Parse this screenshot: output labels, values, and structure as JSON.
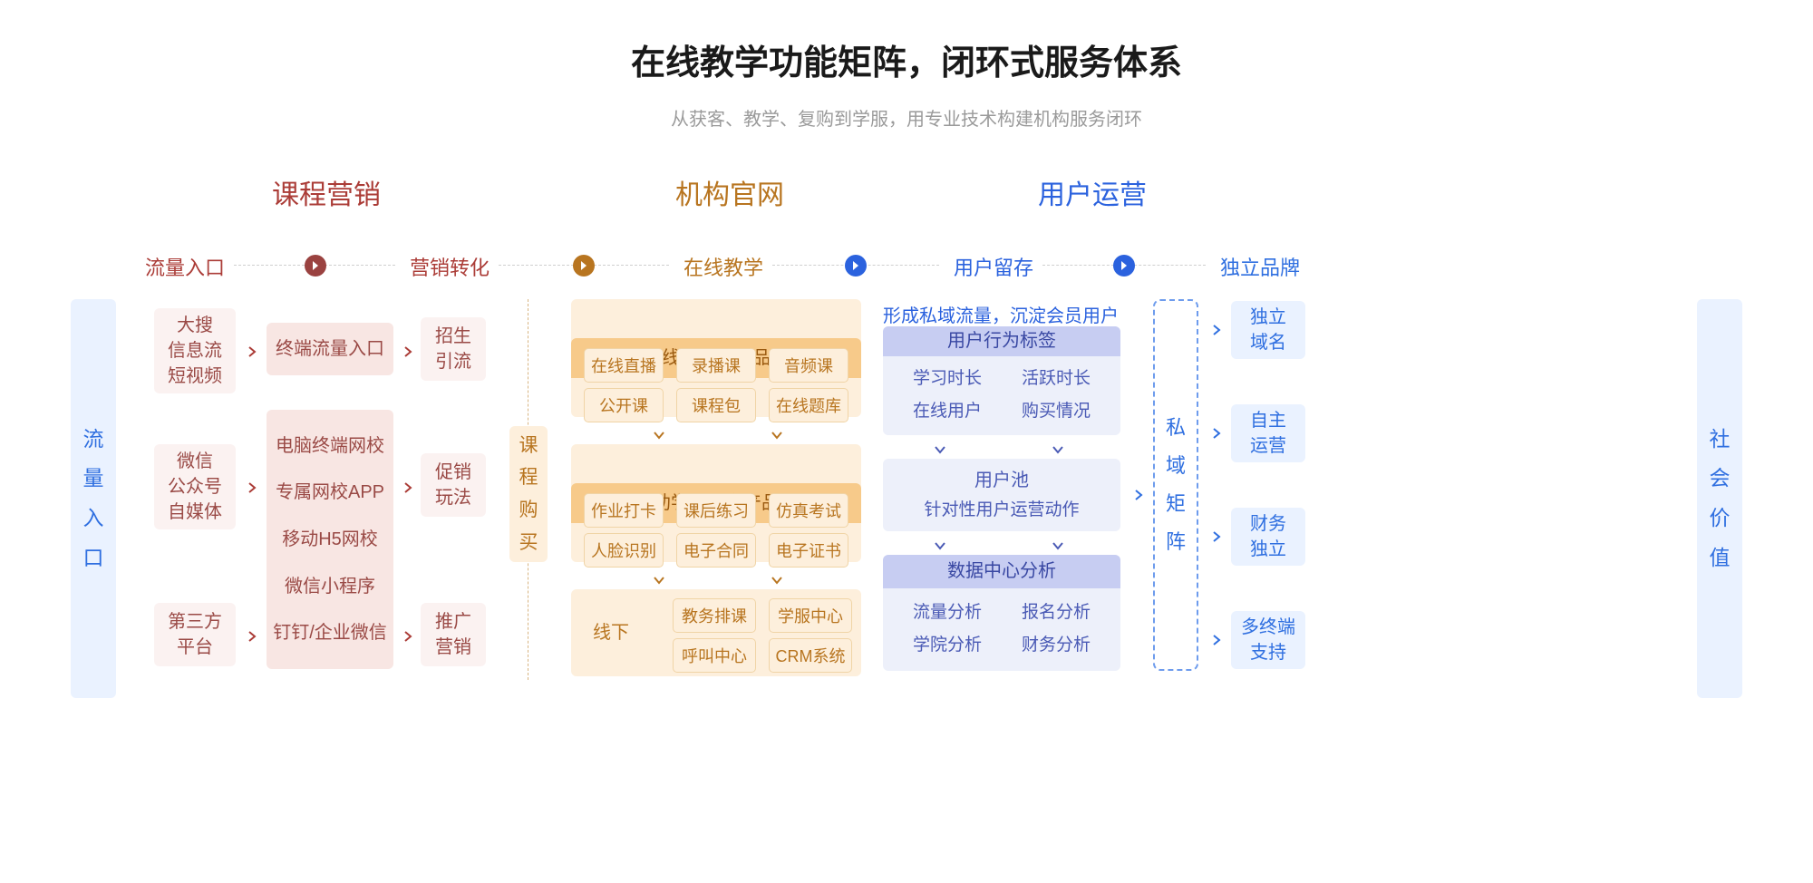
{
  "title": "在线教学功能矩阵，闭环式服务体系",
  "subtitle": "从获客、教学、复购到学服，用专业技术构建机构服务闭环",
  "sections": {
    "marketing": {
      "label": "课程营销",
      "color": "#ab3c37"
    },
    "website": {
      "label": "机构官网",
      "color": "#b87520"
    },
    "userops": {
      "label": "用户运营",
      "color": "#2b62de"
    }
  },
  "stages": {
    "s1": {
      "label": "流量入口",
      "color": "#ab3c37"
    },
    "s2": {
      "label": "营销转化",
      "color": "#ab3c37"
    },
    "s3": {
      "label": "在线教学",
      "color": "#b87520"
    },
    "s4": {
      "label": "用户留存",
      "color": "#2b62de"
    },
    "s5": {
      "label": "独立品牌",
      "color": "#2f6fe0"
    }
  },
  "pillars": {
    "left": {
      "label": "流量入口",
      "bg": "#eaf2ff",
      "color": "#2f6fe0"
    },
    "mid": {
      "label": "课程购买",
      "bg": "#fdefdc",
      "color": "#b87520"
    },
    "right": {
      "label": "社会价值",
      "bg": "#eaf2ff",
      "color": "#2f6fe0"
    }
  },
  "marketing": {
    "sources": {
      "a": "大搜\n信息流\n短视频",
      "b": "微信\n公众号\n自媒体",
      "c": "第三方\n平台"
    },
    "mids": {
      "a": "终端流量入口",
      "list": [
        "电脑终端网校",
        "专属网校APP",
        "移动H5网校",
        "微信小程序",
        "钉钉/企业微信"
      ]
    },
    "converts": {
      "a": "招生\n引流",
      "b": "促销\n玩法",
      "c": "推广\n营销"
    }
  },
  "teaching": {
    "online_hdr": "线上教育产品",
    "online": [
      "在线直播",
      "录播课",
      "音频课",
      "公开课",
      "课程包",
      "在线题库"
    ],
    "assist_hdr": "助学、督学产品",
    "assist": [
      "作业打卡",
      "课后练习",
      "仿真考试",
      "人脸识别",
      "电子合同",
      "电子证书"
    ],
    "offline_hdr": "线下",
    "offline": [
      "教务排课",
      "学服中心",
      "呼叫中心",
      "CRM系统"
    ]
  },
  "userops": {
    "tagline": "形成私域流量，沉淀会员用户",
    "behavior_hdr": "用户行为标签",
    "behavior": [
      "学习时长",
      "活跃时长",
      "在线用户",
      "购买情况"
    ],
    "pool_hdr": "用户池",
    "pool_sub": "针对性用户运营动作",
    "data_hdr": "数据中心分析",
    "data": [
      "流量分析",
      "报名分析",
      "学院分析",
      "财务分析"
    ]
  },
  "private": {
    "label": "私域矩阵"
  },
  "brand": {
    "items": [
      "独立\n域名",
      "自主\n运营",
      "财务\n独立",
      "多终端\n支持"
    ]
  },
  "styling": {
    "arrow_red": "#9a4240",
    "arrow_orange": "#b87520",
    "arrow_blue": "#2b62de",
    "dash_color": "#cfcfcf",
    "dashed_border": "#6e9ced",
    "pink_light": "#fbf2f1",
    "pink_med": "#f8e6e3",
    "orange_head": "#f7ca8a",
    "orange_light": "#fdefdc",
    "blue_head": "#c7cdf2",
    "blue_box": "#edf0fa",
    "lblue": "#eaf2ff"
  }
}
